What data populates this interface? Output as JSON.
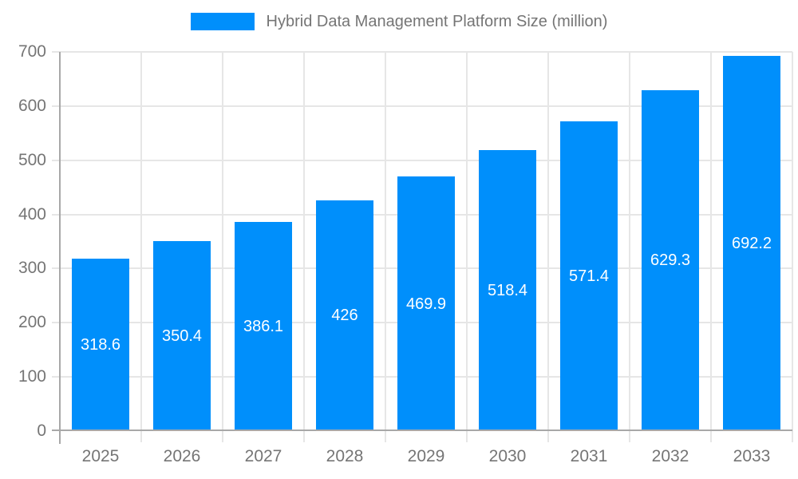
{
  "chart_data": {
    "type": "bar",
    "title": "Hybrid Data Management Platform Size (million)",
    "categories": [
      "2025",
      "2026",
      "2027",
      "2028",
      "2029",
      "2030",
      "2031",
      "2032",
      "2033"
    ],
    "values": [
      318.6,
      350.4,
      386.1,
      426,
      469.9,
      518.4,
      571.4,
      629.3,
      692.2
    ],
    "value_labels": [
      "318.6",
      "350.4",
      "386.1",
      "426",
      "469.9",
      "518.4",
      "571.4",
      "629.3",
      "692.2"
    ],
    "series_name": "Hybrid Data Management Platform Size (million)",
    "xlabel": "",
    "ylabel": "",
    "ylim": [
      0,
      700
    ],
    "y_ticks": [
      0,
      100,
      200,
      300,
      400,
      500,
      600,
      700
    ],
    "grid": true,
    "legend_position": "top",
    "value_label_position": "center-of-bar",
    "colors": {
      "bar": "#008FFB",
      "axis_label": "#757575",
      "axis_line": "#a8a8a8",
      "gridline": "#e6e6e6",
      "value_label": "#ffffff",
      "background": "#ffffff"
    }
  }
}
